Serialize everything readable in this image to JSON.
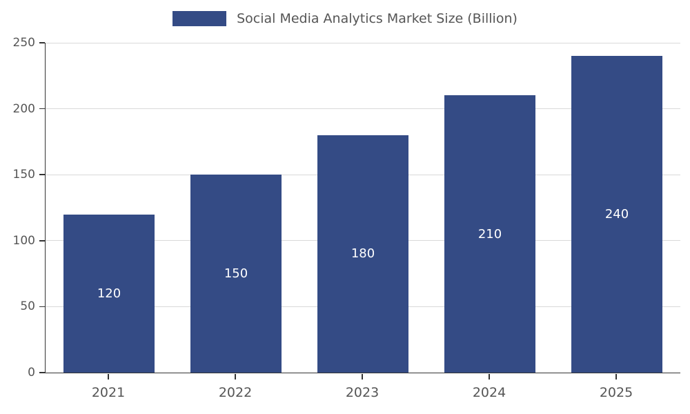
{
  "chart_data": {
    "type": "bar",
    "title": "Social Media Analytics Market Size (Billion)",
    "categories": [
      "2021",
      "2022",
      "2023",
      "2024",
      "2025"
    ],
    "values": [
      120,
      150,
      180,
      210,
      240
    ],
    "bar_value_labels": [
      "120",
      "150",
      "180",
      "210",
      "240"
    ],
    "xlabel": "",
    "ylabel": "",
    "ylim": [
      0,
      250
    ],
    "yticks": [
      0,
      50,
      100,
      150,
      200,
      250
    ],
    "grid": "horizontal",
    "legend_position": "top-center",
    "colors": {
      "bar": "#344b85",
      "bar_label": "#ffffff",
      "grid": "#d9d9d9",
      "axis": "#333333",
      "tick_label": "#555555"
    }
  }
}
